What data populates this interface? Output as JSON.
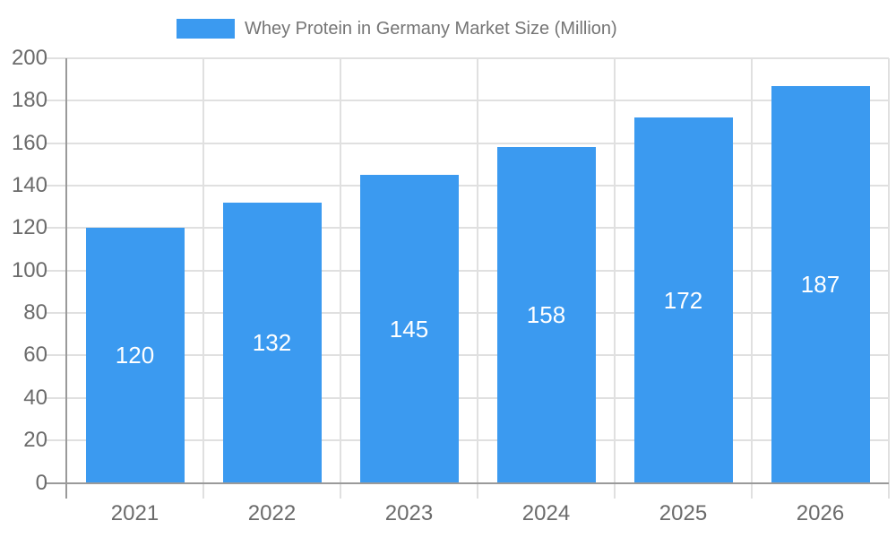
{
  "legend": {
    "label": "Whey Protein in Germany Market Size (Million)"
  },
  "chart_data": {
    "type": "bar",
    "title": "Whey Protein in Germany Market Size (Million)",
    "categories": [
      "2021",
      "2022",
      "2023",
      "2024",
      "2025",
      "2026"
    ],
    "values": [
      120,
      132,
      145,
      158,
      172,
      187
    ],
    "xlabel": "",
    "ylabel": "",
    "ylim": [
      0,
      200
    ],
    "ytick_step": 20,
    "grid": true,
    "legend_position": "top-center",
    "value_label_position": "inside-center"
  },
  "colors": {
    "bar": "#3B9AF0",
    "axis_line": "#9A9A9A",
    "gridline": "#E0E0E0",
    "axis_text": "#6B6B6B",
    "title_text": "#757575",
    "value_text": "#FFFFFF",
    "background": "#FFFFFF"
  }
}
